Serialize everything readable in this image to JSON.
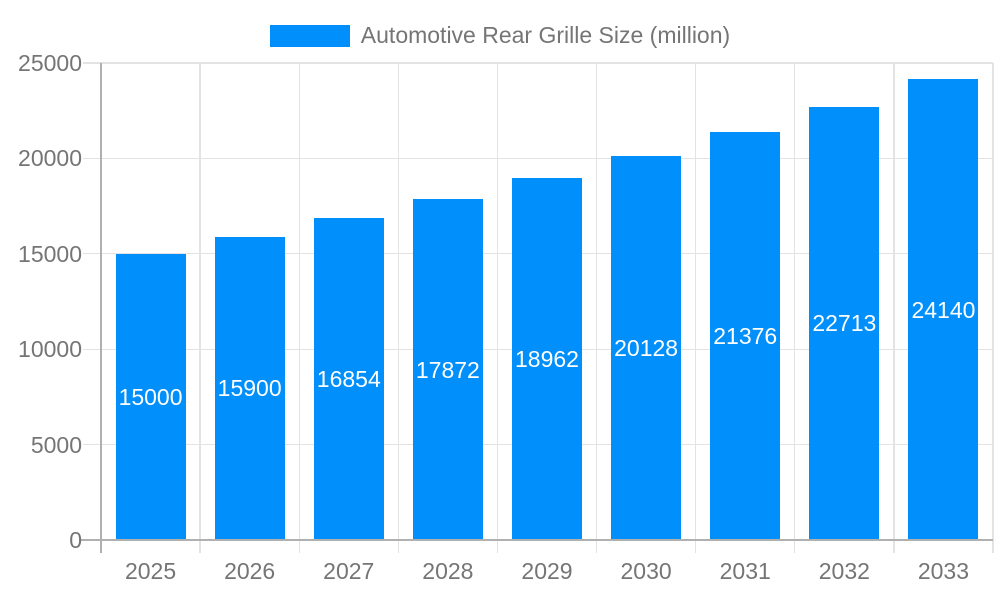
{
  "legend": {
    "items": [
      {
        "label": "Automotive Rear Grille Size (million)",
        "swatch_color": "#008FFB"
      }
    ]
  },
  "chart_data": {
    "type": "bar",
    "title": "Automotive Rear Grille Size (million)",
    "categories": [
      "2025",
      "2026",
      "2027",
      "2028",
      "2029",
      "2030",
      "2031",
      "2032",
      "2033"
    ],
    "values": [
      15000,
      15900,
      16854,
      17872,
      18962,
      20128,
      21376,
      22713,
      24140
    ],
    "xlabel": "",
    "ylabel": "",
    "ylim": [
      0,
      25000
    ],
    "yticks": [
      0,
      5000,
      10000,
      15000,
      20000,
      25000
    ],
    "grid": true,
    "legend_position": "top",
    "bar_color": "#008FFB",
    "bar_label_color": "#ffffff",
    "axis_color": "#b0b0b0",
    "gridline_color": "#e3e3e3",
    "tick_label_color": "#757575",
    "background_color": "#ffffff"
  }
}
